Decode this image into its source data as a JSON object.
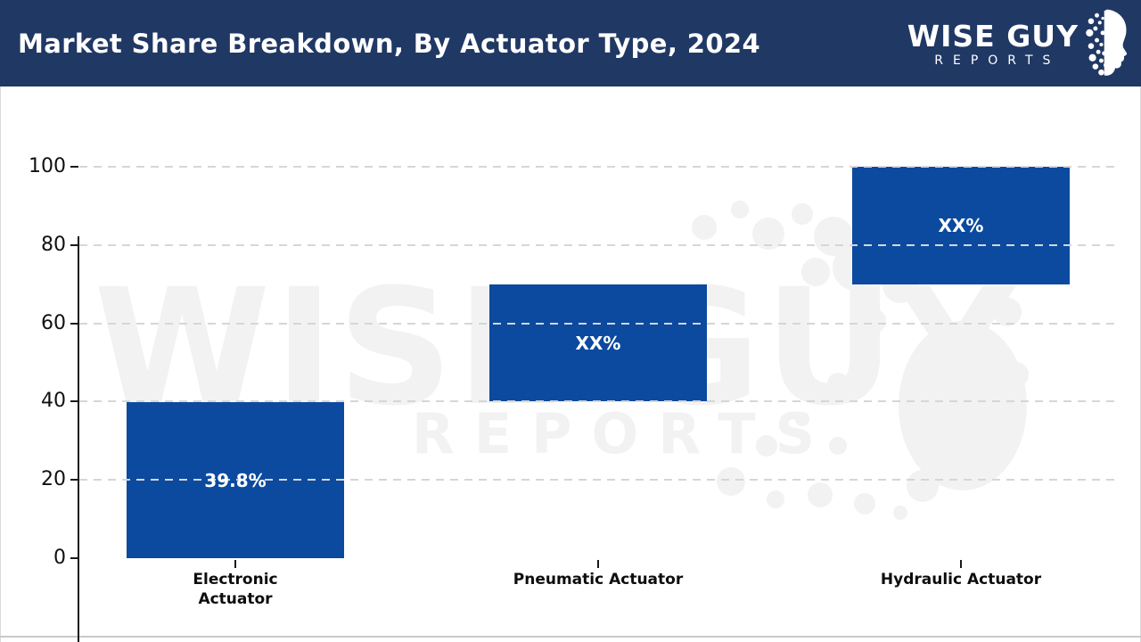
{
  "header": {
    "title": "Market Share Breakdown, By Actuator Type, 2024",
    "bg_color": "#203864"
  },
  "logo": {
    "wordmark": "WISE GUY",
    "subtext": "REPORTS"
  },
  "watermark": {
    "line1": "WISE GUY",
    "line2": "REPORTS",
    "color": "#f2f2f2"
  },
  "chart_data": {
    "type": "bar",
    "subtype": "stacked-waterfall",
    "title": "Market Share Breakdown, By Actuator Type, 2024",
    "categories": [
      "Electronic\nActuator",
      "Pneumatic Actuator",
      "Hydraulic Actuator"
    ],
    "segments": [
      {
        "category": "Electronic Actuator",
        "start": 0,
        "end": 39.8,
        "label": "39.8%"
      },
      {
        "category": "Pneumatic Actuator",
        "start": 40,
        "end": 70,
        "label": "XX%"
      },
      {
        "category": "Hydraulic Actuator",
        "start": 70,
        "end": 100,
        "label": "XX%"
      }
    ],
    "y_ticks": [
      0,
      20,
      40,
      60,
      80,
      100
    ],
    "ylim": [
      0,
      100
    ],
    "xlabel": "",
    "ylabel": "",
    "grid": {
      "horizontal": true,
      "style": "dashed",
      "color": "#d6d6d6",
      "over_bars": true
    },
    "legend": null,
    "bar_color": "#0b4a9f",
    "bar_label_color": "#ffffff",
    "axis_color": "#1a1a1a"
  }
}
